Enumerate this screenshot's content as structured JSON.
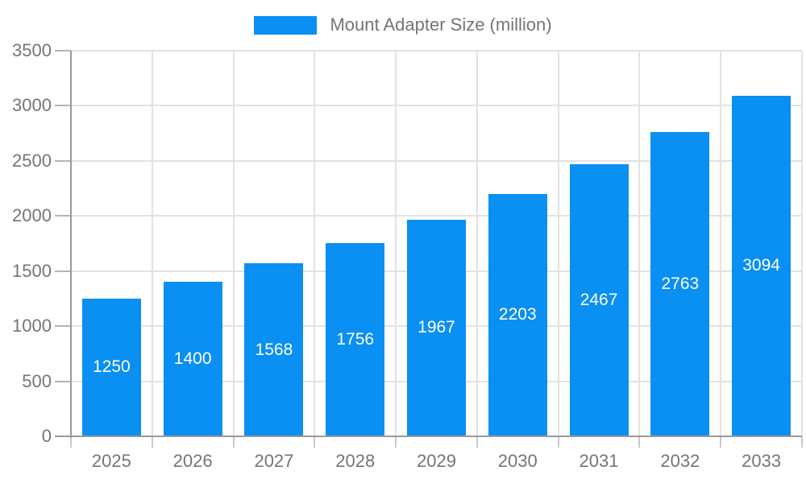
{
  "chart_data": {
    "type": "bar",
    "title": "",
    "legend": "Mount Adapter Size (million)",
    "legend_position": "top-center",
    "categories": [
      "2025",
      "2026",
      "2027",
      "2028",
      "2029",
      "2030",
      "2031",
      "2032",
      "2033"
    ],
    "values": [
      1250,
      1400,
      1568,
      1756,
      1967,
      2203,
      2467,
      2763,
      3094
    ],
    "value_labels": [
      "1250",
      "1400",
      "1568",
      "1756",
      "1967",
      "2203",
      "2467",
      "2763",
      "3094"
    ],
    "xlabel": "",
    "ylabel": "",
    "ylim": [
      0,
      3500
    ],
    "y_tick_step": 500,
    "y_tick_labels": [
      "0",
      "500",
      "1000",
      "1500",
      "2000",
      "2500",
      "3000",
      "3500"
    ],
    "grid": true,
    "colors": {
      "bar": "#0a8ff2",
      "value_label": "#ffffff",
      "axis_text": "#757575",
      "gridline": "#e2e2e2",
      "axis_line": "#9a9a9a",
      "tick": "#c9c9c9",
      "background": "#ffffff"
    }
  }
}
